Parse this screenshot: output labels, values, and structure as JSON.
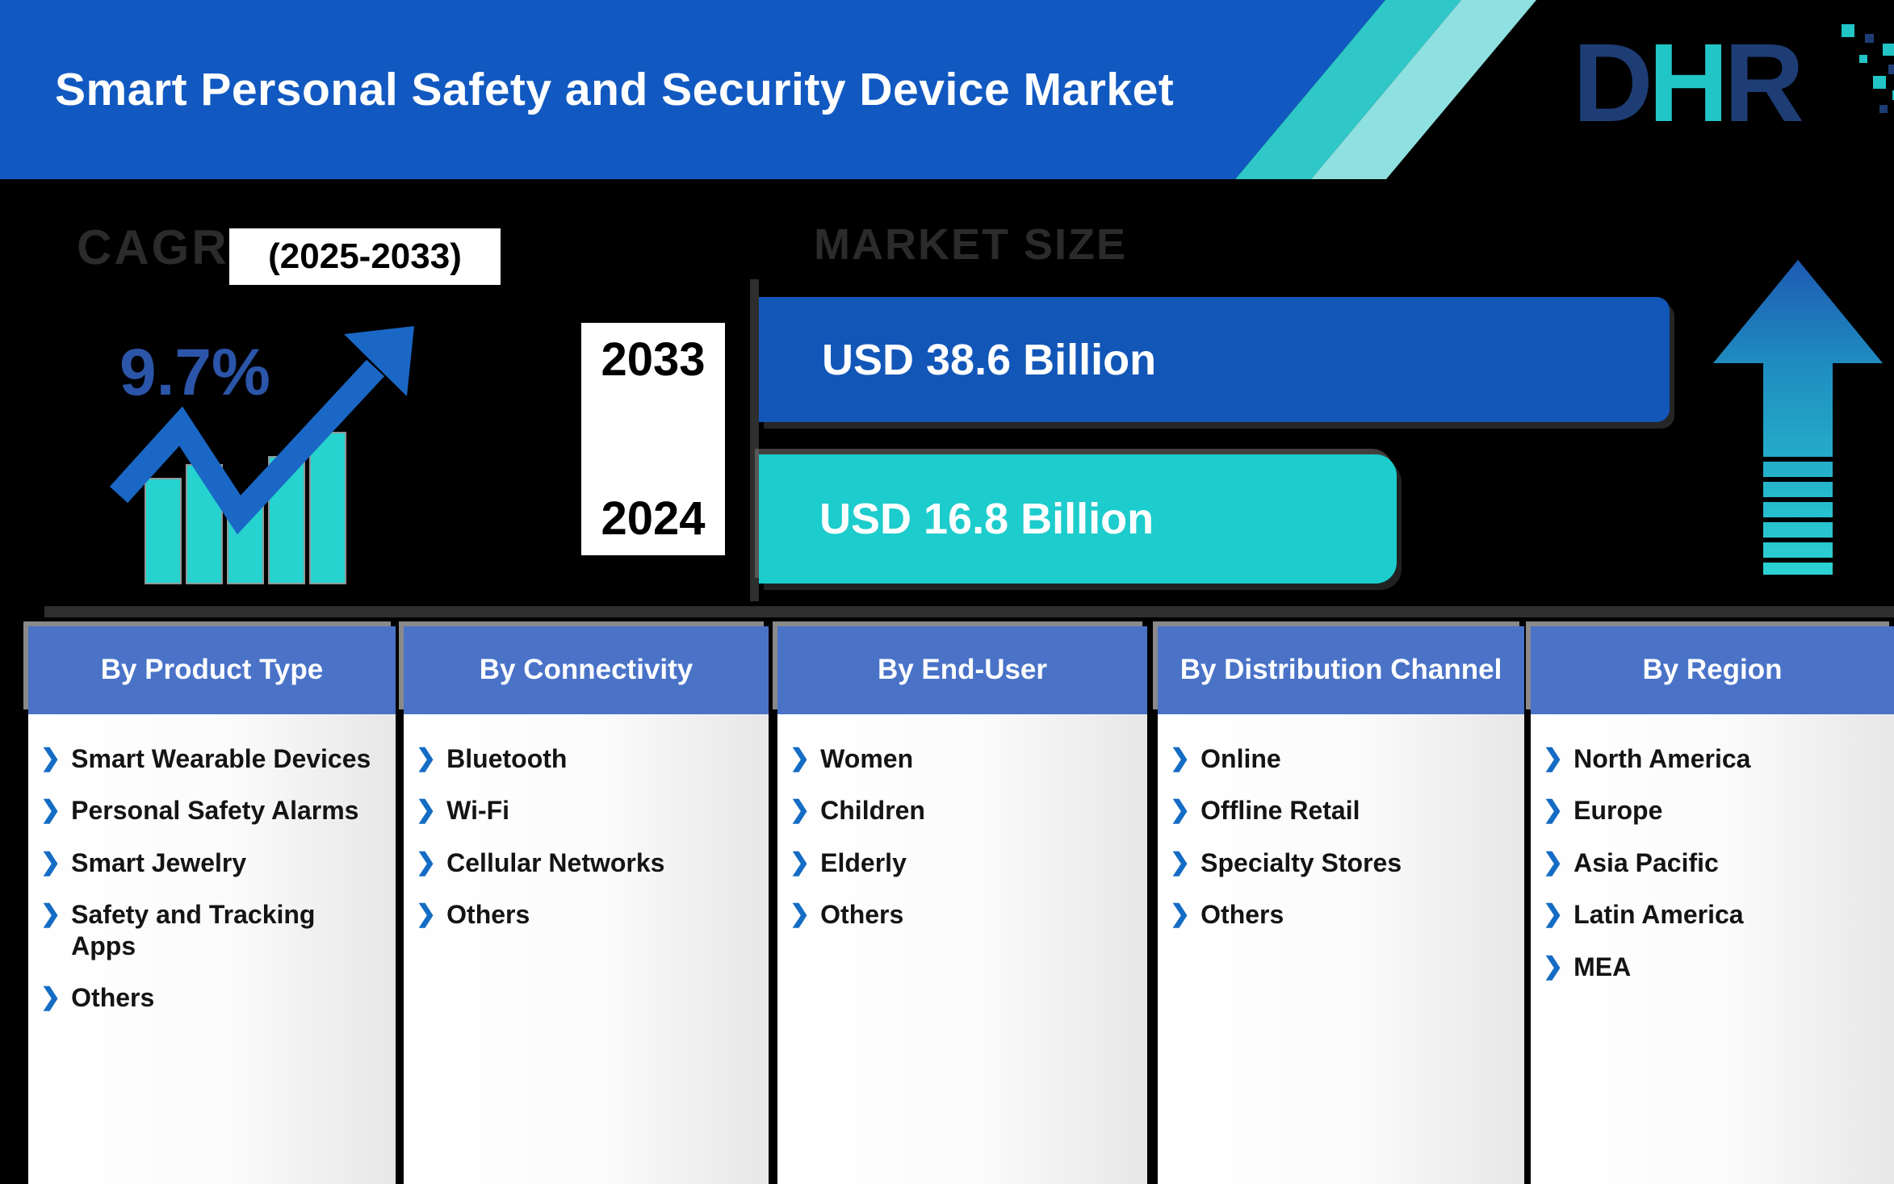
{
  "banner": {
    "title": "Smart Personal Safety and Security Device Market"
  },
  "logo": {
    "letters": [
      "D",
      "H",
      "R"
    ]
  },
  "ui": {
    "bullet": "❯"
  },
  "cagr": {
    "label": "CAGR",
    "range": "(2025-2033)",
    "value": "9.7%"
  },
  "market_size": {
    "title": "MARKET SIZE",
    "rows": [
      {
        "year": "2033",
        "value": "USD 38.6 Billion"
      },
      {
        "year": "2024",
        "value": "USD 16.8 Billion"
      }
    ]
  },
  "columns": [
    {
      "title": "By Product Type",
      "items": [
        "Smart Wearable Devices",
        "Personal Safety Alarms",
        "Smart Jewelry",
        "Safety and Tracking Apps",
        "Others"
      ]
    },
    {
      "title": "By Connectivity",
      "items": [
        "Bluetooth",
        "Wi-Fi",
        "Cellular Networks",
        "Others"
      ]
    },
    {
      "title": "By End-User",
      "items": [
        "Women",
        "Children",
        "Elderly",
        "Others"
      ]
    },
    {
      "title": "By Distribution Channel",
      "items": [
        "Online",
        "Offline Retail",
        "Specialty Stores",
        "Others"
      ]
    },
    {
      "title": "By Region",
      "items": [
        "North America",
        "Europe",
        "Asia Pacific",
        "Latin America",
        "MEA"
      ]
    }
  ],
  "colors": {
    "banner_blue": "#1159c1",
    "stripe_teal": "#2fc7c7",
    "stripe_light_teal": "#8fe0e0",
    "header_blue": "#4a73c8",
    "bar_blue": "#1256b8",
    "bar_teal": "#1dcccc",
    "accent_blue": "#2b55a8",
    "chevron_blue": "#156cc4",
    "dark_gray_text": "#2b2b2b",
    "background": "#000000",
    "logo_navy": "#1e3d75",
    "logo_teal": "#22c5c5"
  },
  "chart_data": {
    "type": "bar",
    "orientation": "horizontal",
    "title": "MARKET SIZE",
    "categories": [
      "2033",
      "2024"
    ],
    "values": [
      38.6,
      16.8
    ],
    "unit": "USD Billion",
    "bar_labels": [
      "USD 38.6 Billion",
      "USD 16.8 Billion"
    ],
    "bar_colors": [
      "#1256b8",
      "#1dcccc"
    ],
    "annotations": {
      "cagr_percent": 9.7,
      "cagr_period": "2025-2033"
    },
    "xlabel": "",
    "ylabel": "",
    "grid": false,
    "legend": false
  }
}
